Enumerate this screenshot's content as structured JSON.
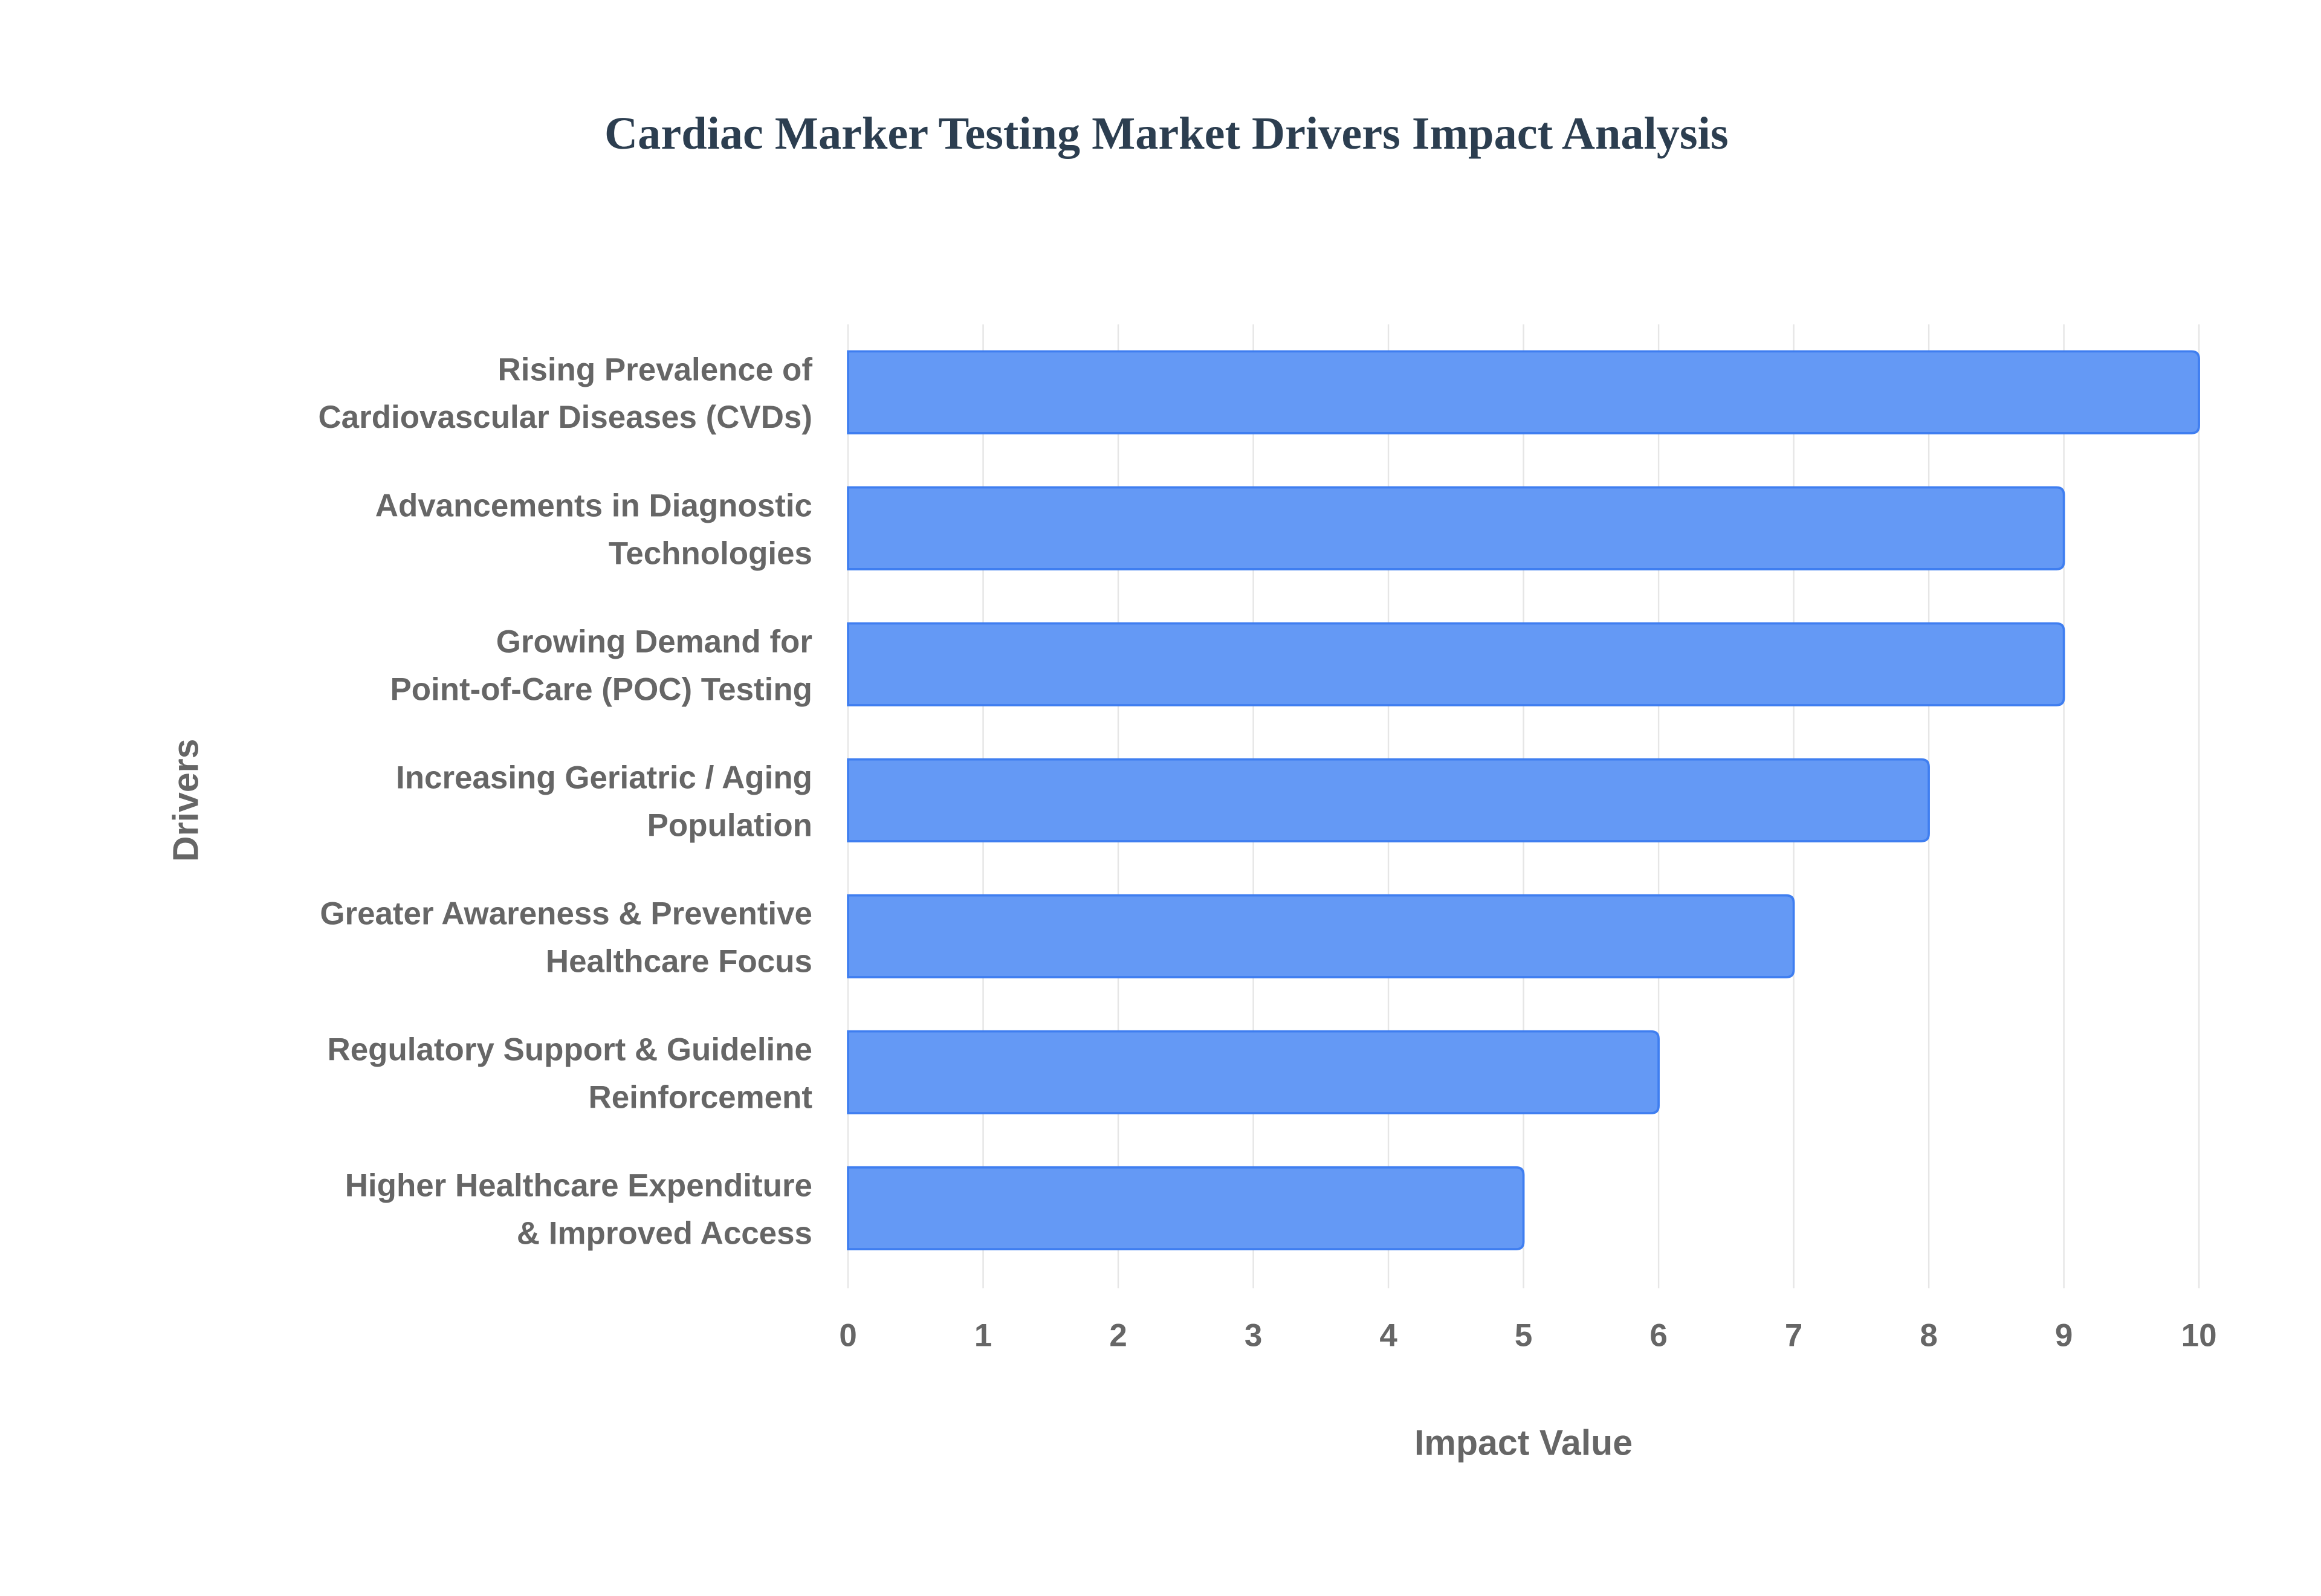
{
  "chart_data": {
    "type": "bar",
    "orientation": "horizontal",
    "title": "Cardiac Marker Testing Market Drivers Impact Analysis",
    "xlabel": "Impact Value",
    "ylabel": "Drivers",
    "xlim": [
      0,
      10
    ],
    "xticks": [
      "0",
      "1",
      "2",
      "3",
      "4",
      "5",
      "6",
      "7",
      "8",
      "9",
      "10"
    ],
    "grid": true,
    "categories": [
      [
        "Rising Prevalence of",
        "Cardiovascular Diseases (CVDs)"
      ],
      [
        "Advancements in Diagnostic",
        "Technologies"
      ],
      [
        "Growing Demand for",
        "Point-of-Care (POC) Testing"
      ],
      [
        "Increasing Geriatric / Aging",
        "Population"
      ],
      [
        "Greater Awareness & Preventive",
        "Healthcare Focus"
      ],
      [
        "Regulatory Support & Guideline",
        "Reinforcement"
      ],
      [
        "Higher Healthcare Expenditure",
        "& Improved Access"
      ]
    ],
    "values": [
      10,
      9,
      9,
      8,
      7,
      6,
      5
    ],
    "colors": {
      "bar_fill": "#6499f5",
      "bar_border": "#3f7ef0",
      "grid": "#e6e6e6",
      "title": "#2c3e50",
      "text": "#666666"
    }
  }
}
